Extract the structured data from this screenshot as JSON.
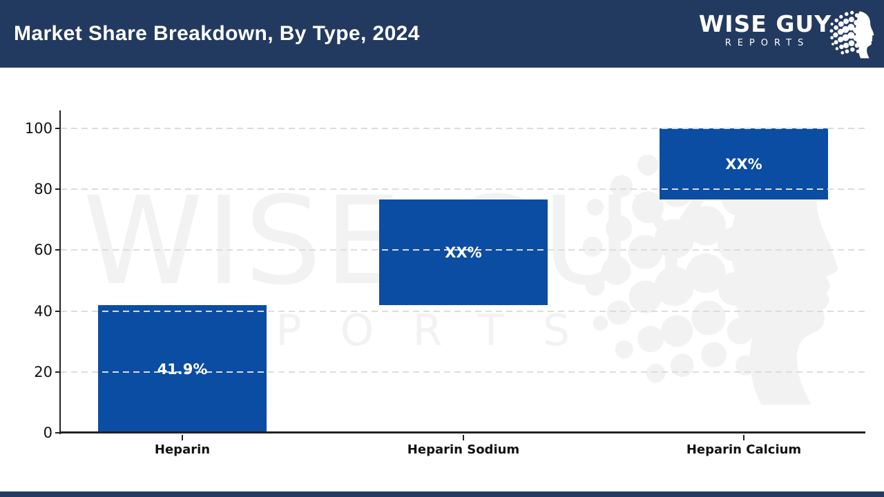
{
  "header": {
    "title": "Market Share Breakdown, By Type, 2024",
    "bg_color": "#233a60",
    "logo": {
      "line1": "WISE GUY",
      "line2": "REPORTS",
      "face_icon": "dotted-face-profile"
    }
  },
  "watermark": {
    "line1": "WISE GUY",
    "line2": "REPORTS",
    "face_icon": "dotted-face-profile",
    "color": "#f2f2f2"
  },
  "chart_data": {
    "type": "bar",
    "subtype": "floating-waterfall",
    "title": "Market Share Breakdown, By Type, 2024",
    "categories": [
      "Heparin",
      "Heparin Sodium",
      "Heparin Calcium"
    ],
    "segments": [
      {
        "category": "Heparin",
        "start": 0,
        "end": 41.9,
        "label": "41.9%"
      },
      {
        "category": "Heparin Sodium",
        "start": 41.9,
        "end": 76.6,
        "label": "XX%"
      },
      {
        "category": "Heparin Calcium",
        "start": 76.6,
        "end": 100,
        "label": "XX%"
      }
    ],
    "xlabel": "",
    "ylabel": "",
    "yticks": [
      0,
      20,
      40,
      60,
      80,
      100
    ],
    "ylim": [
      0,
      105
    ],
    "grid": "horizontal-dashed",
    "legend": "none",
    "bar_color": "#0b4da2",
    "bar_label_color": "#ffffff",
    "axis_color": "#222226",
    "grid_color": "#dcdcdc",
    "tick_label_color": "#111111"
  },
  "footer": {
    "bg_color": "#233a60"
  }
}
